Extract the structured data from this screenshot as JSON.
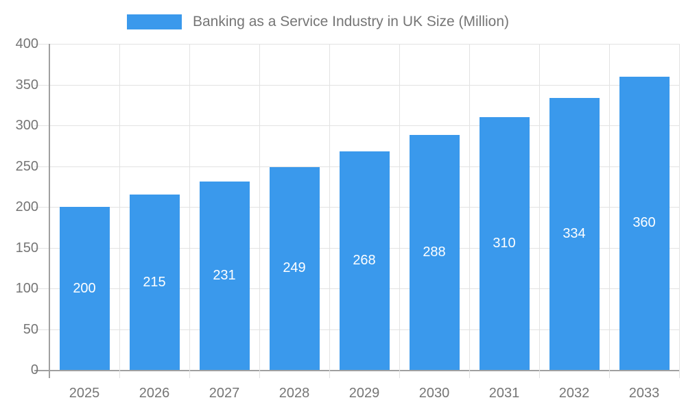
{
  "chart_data": {
    "type": "bar",
    "title": "Banking as a Service Industry in UK Size (Million)",
    "legend_position": "top",
    "categories": [
      "2025",
      "2026",
      "2027",
      "2028",
      "2029",
      "2030",
      "2031",
      "2032",
      "2033"
    ],
    "values": [
      200,
      215,
      231,
      249,
      268,
      288,
      310,
      334,
      360
    ],
    "value_labels": [
      "200",
      "215",
      "231",
      "249",
      "268",
      "288",
      "310",
      "334",
      "360"
    ],
    "value_label_position": "inside-center",
    "xlabel": "",
    "ylabel": "",
    "ylim": [
      0,
      400
    ],
    "yticks": [
      "0",
      "50",
      "100",
      "150",
      "200",
      "250",
      "300",
      "350",
      "400"
    ],
    "grid": true,
    "colors": {
      "bar": "#3A99EC",
      "bar_value_text": "#ffffff",
      "axis_text": "#757575",
      "gridline": "#e2e2e2",
      "axis_line": "#a0a0a0"
    }
  }
}
